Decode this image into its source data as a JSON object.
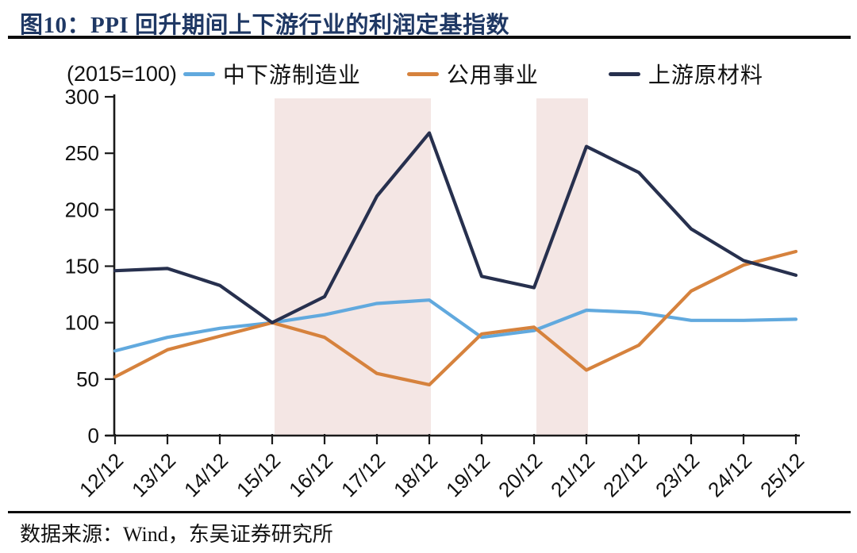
{
  "header": {
    "title": "图10：PPI 回升期间上下游行业的利润定基指数"
  },
  "footer": {
    "source": "数据来源：Wind，东吴证券研究所"
  },
  "chart_data": {
    "type": "line",
    "title": "PPI回升期间上下游行业的利润定基指数",
    "unit_label": "(2015=100)",
    "x": [
      "12/12",
      "13/12",
      "14/12",
      "15/12",
      "16/12",
      "17/12",
      "18/12",
      "19/12",
      "20/12",
      "21/12",
      "22/12",
      "23/12",
      "24/12",
      "25/12"
    ],
    "xlabel": "",
    "ylabel": "",
    "ylim": [
      0,
      300
    ],
    "yticks": [
      0,
      50,
      100,
      150,
      200,
      250,
      300
    ],
    "grid": false,
    "legend_position": "top",
    "band_color": "#f4e6e4",
    "axis_color": "#1a1a1a",
    "series": [
      {
        "name": "中下游制造业",
        "color": "#61a9de",
        "values": [
          75,
          87,
          95,
          100,
          107,
          117,
          120,
          87,
          93,
          111,
          109,
          102,
          102,
          103
        ]
      },
      {
        "name": "公用事业",
        "color": "#d6823d",
        "values": [
          52,
          76,
          88,
          100,
          87,
          55,
          45,
          90,
          96,
          58,
          80,
          128,
          151,
          163
        ]
      },
      {
        "name": "上游原材料",
        "color": "#27304e",
        "values": [
          146,
          148,
          133,
          100,
          123,
          212,
          268,
          141,
          131,
          256,
          233,
          183,
          155,
          142
        ]
      }
    ],
    "highlight_bands": [
      {
        "from": "15/12",
        "to": "18/12"
      },
      {
        "from": "20/12",
        "to": "21/12"
      }
    ]
  }
}
